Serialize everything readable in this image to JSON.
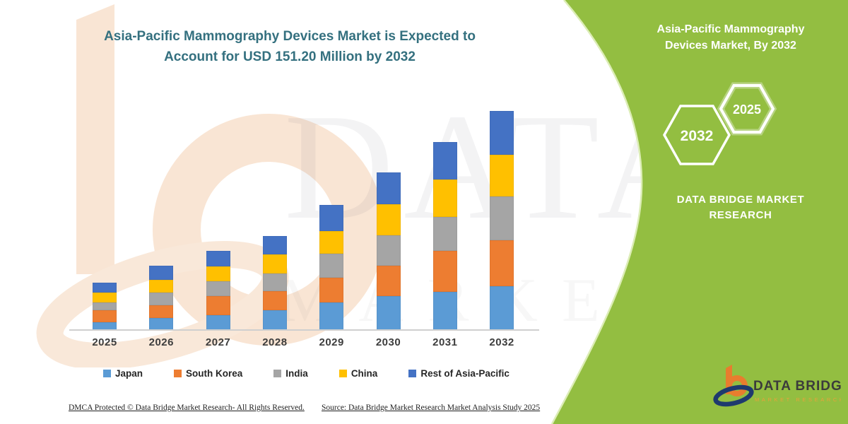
{
  "title": {
    "line1": "Asia-Pacific Mammography Devices Market is Expected to",
    "line2": "Account for USD 151.20 Million by 2032"
  },
  "side_panel": {
    "heading_line1": "Asia-Pacific Mammography",
    "heading_line2": "Devices Market, By 2032",
    "hexagon_left_year": "2032",
    "hexagon_right_year": "2025",
    "brand_line1": "DATA BRIDGE MARKET",
    "brand_line2": "RESEARCH",
    "background_color": "#93BE41"
  },
  "logo": {
    "name": "DATA BRIDGE",
    "subtitle": "MARKET RESEARCH",
    "orange": "#E87D2E",
    "navy": "#1E3A6E"
  },
  "footer": {
    "dmca": "DMCA Protected © Data Bridge Market Research- All Rights Reserved.",
    "source": "Source: Data Bridge Market Research Market Analysis Study 2025"
  },
  "watermark": {
    "line1": "DATA BRIDGE",
    "line2": "MARKET RESEARCH"
  },
  "chart_data": {
    "type": "bar",
    "stacked": true,
    "unit": "USD Million",
    "title": "Asia-Pacific Mammography Devices Market is Expected to Account for USD 151.20 Million by 2032",
    "xlabel": "",
    "ylabel": "",
    "grid": false,
    "legend_position": "bottom",
    "categories": [
      "2025",
      "2026",
      "2027",
      "2028",
      "2029",
      "2030",
      "2031",
      "2032"
    ],
    "series": [
      {
        "name": "Japan",
        "color": "#5B9BD5",
        "values": [
          5.2,
          8.3,
          10.4,
          13.7,
          19.0,
          23.3,
          26.3,
          30.1
        ]
      },
      {
        "name": "South Korea",
        "color": "#ED7D31",
        "values": [
          8.4,
          8.6,
          12.8,
          13.2,
          17.1,
          21.1,
          28.3,
          32.0
        ]
      },
      {
        "name": "India",
        "color": "#A5A5A5",
        "values": [
          5.4,
          8.9,
          10.7,
          12.2,
          16.6,
          21.1,
          23.4,
          30.1
        ]
      },
      {
        "name": "China",
        "color": "#FFC000",
        "values": [
          7.0,
          8.8,
          9.8,
          13.0,
          15.6,
          21.1,
          25.9,
          28.8
        ]
      },
      {
        "name": "Rest of Asia-Pacific",
        "color": "#4472C4",
        "values": [
          6.9,
          9.8,
          10.9,
          13.0,
          18.0,
          22.0,
          25.9,
          30.2
        ]
      }
    ],
    "totals": [
      32.9,
      44.4,
      54.6,
      65.1,
      86.3,
      108.6,
      129.8,
      151.2
    ],
    "highlight_total_2032": "USD 151.20 Million"
  }
}
